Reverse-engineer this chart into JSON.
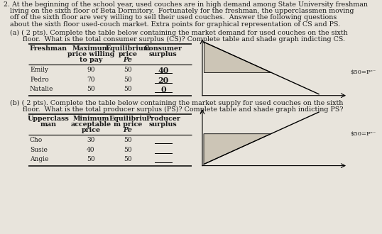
{
  "background_color": "#e8e4dc",
  "text_color": "#1a1a1a",
  "fs_title": 6.8,
  "fs_body": 6.5,
  "fs_header": 6.8,
  "title_lines": [
    "2. At the beginning of the school year, used couches are in high demand among State University freshman",
    "   living on the sixth floor of Beta Dormitory.  Fortunately for the freshman, the upperclassmen moving",
    "   off of the sixth floor are very willing to sell their used couches.  Answer the following questions",
    "   about the sixth floor used-couch market. Extra points for graphical representation of CS and PS."
  ],
  "part_a_lines": [
    "   (a) ( 2 pts). Complete the table below containing the market demand for used couches on the sixth",
    "         floor.  What is the total consumer surplus (CS)? Complete table and shade graph indicting CS."
  ],
  "part_b_lines": [
    "   (b) ( 2 pts). Complete the table below containing the market supply for used couches on the sixth",
    "         floor.  What is the total producer surplus (PS)? Complete table and shade graph indicting PS?"
  ],
  "table_a_header_cols": [
    [
      "Freshman"
    ],
    [
      "Maximum",
      "price willing",
      "to pay"
    ],
    [
      "Equilibrium",
      "price",
      "Pe"
    ],
    [
      "Consumer",
      "surplus"
    ]
  ],
  "table_a_rows": [
    [
      "Emily",
      "90",
      "50",
      "40"
    ],
    [
      "Pedro",
      "70",
      "50",
      "20"
    ],
    [
      "Natalie",
      "50",
      "50",
      "0"
    ]
  ],
  "table_b_header_cols": [
    [
      "Upperclass",
      "man"
    ],
    [
      "Minimum",
      "acceptable",
      "price"
    ],
    [
      "Equilibriu",
      "m price",
      "Pe"
    ],
    [
      "Producer",
      "surplus"
    ]
  ],
  "table_b_rows": [
    [
      "Cho",
      "30",
      "50"
    ],
    [
      "Susie",
      "40",
      "50"
    ],
    [
      "Angie",
      "50",
      "50"
    ]
  ],
  "graph_label_a": "$50=P",
  "graph_label_b": "$50=P",
  "cs_fill_color": "#c8c0b0",
  "ps_fill_color": "#c8c0b0",
  "line_color": "#333333"
}
